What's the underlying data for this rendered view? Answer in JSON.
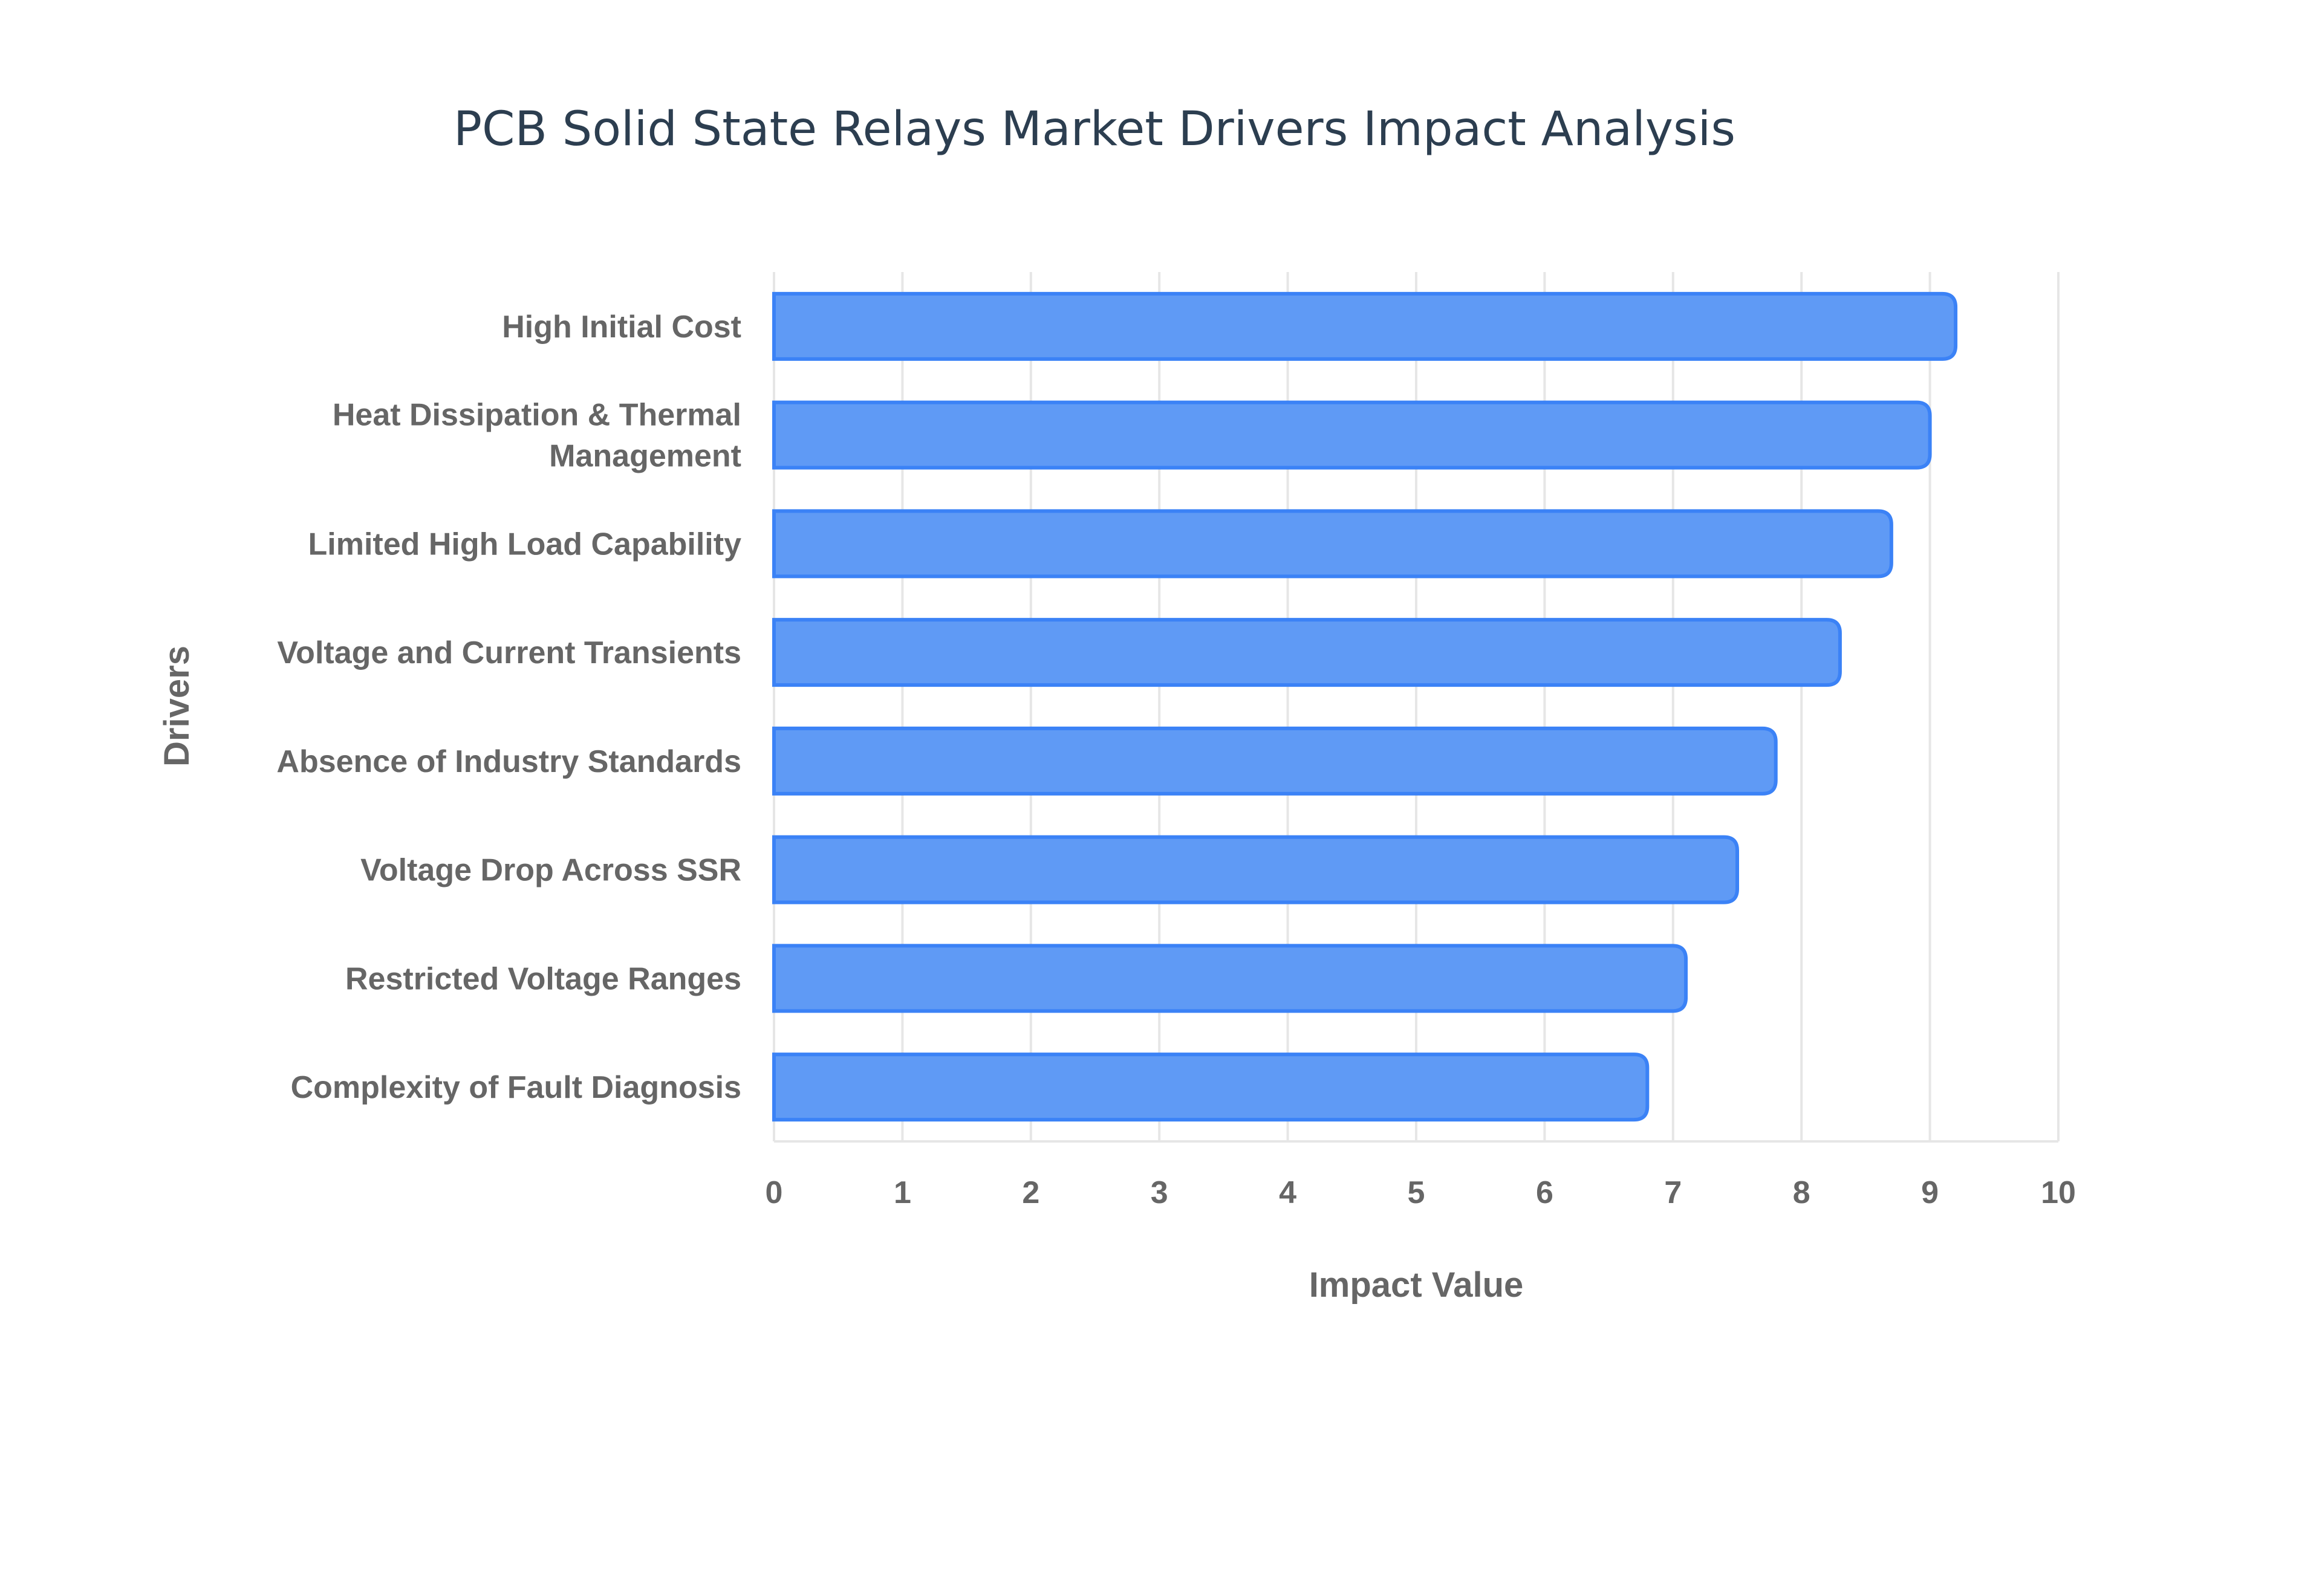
{
  "chart_data": {
    "type": "bar",
    "orientation": "horizontal",
    "title": "PCB Solid State Relays Market Drivers Impact Analysis",
    "xlabel": "Impact Value",
    "ylabel": "Drivers",
    "xlim": [
      0,
      10
    ],
    "xticks": [
      "0",
      "1",
      "2",
      "3",
      "4",
      "5",
      "6",
      "7",
      "8",
      "9",
      "10"
    ],
    "grid": true,
    "categories": [
      "High Initial Cost",
      "Heat Dissipation & Thermal Management",
      "Limited High Load Capability",
      "Voltage and Current Transients",
      "Absence of Industry Standards",
      "Voltage Drop Across SSR",
      "Restricted Voltage Ranges",
      "Complexity of Fault Diagnosis"
    ],
    "values": [
      9.2,
      9.0,
      8.7,
      8.3,
      7.8,
      7.5,
      7.1,
      6.8
    ],
    "colors": {
      "bar_fill": "#5f9af5",
      "bar_stroke": "#3b82f6",
      "grid": "#e6e6e6",
      "text": "#666666",
      "title": "#2c3e50"
    }
  }
}
